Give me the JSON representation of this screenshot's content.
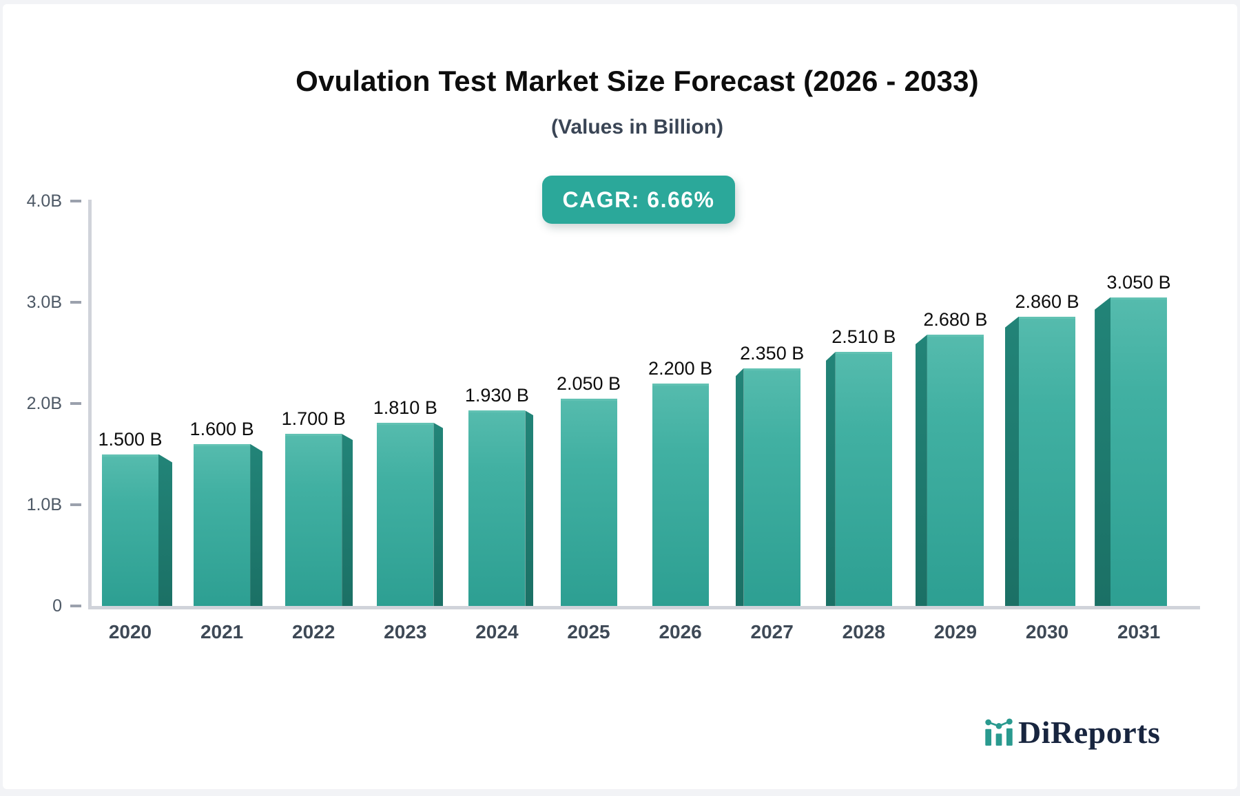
{
  "page": {
    "title": "Ovulation Test Market Size Forecast (2026 - 2033)",
    "subtitle": "(Values in Billion)",
    "cagr_badge": "CAGR: 6.66%"
  },
  "brand": {
    "logo_text": "DiReports",
    "logo_icon": "mini-bar-chart-icon"
  },
  "colors": {
    "bar_face_top": "#55bbad",
    "bar_face_bottom": "#2d9f92",
    "bar_face_highlight": "#62c2b3",
    "bar_side_dark": "#1f8074",
    "badge_teal": "#2ba89a",
    "axis_gray": "#d0d3da",
    "tick_gray": "#9ba1ad",
    "tick_label_color": "#4d5865",
    "year_label_color": "#3e4956",
    "value_label_color": "#0d0d0d",
    "logo_navy": "#18253f",
    "logo_teal": "#2a9a8f",
    "page_background": "#f2f3f6",
    "card_background": "#ffffff"
  },
  "chart_data": {
    "type": "bar",
    "title": "Ovulation Test Market Size Forecast (2026 - 2033)",
    "subtitle": "(Values in Billion)",
    "cagr": "6.66%",
    "unit": "Billion",
    "categories": [
      "2020",
      "2021",
      "2022",
      "2023",
      "2024",
      "2025",
      "2026",
      "2027",
      "2028",
      "2029",
      "2030",
      "2031"
    ],
    "values": [
      1.5,
      1.6,
      1.7,
      1.81,
      1.93,
      2.05,
      2.2,
      2.35,
      2.51,
      2.68,
      2.86,
      3.05
    ],
    "value_labels": [
      "1.500 B",
      "1.600 B",
      "1.700 B",
      "1.810 B",
      "1.930 B",
      "2.050 B",
      "2.200 B",
      "2.350 B",
      "2.510 B",
      "2.680 B",
      "2.860 B",
      "3.050 B"
    ],
    "xlabel": "",
    "ylabel": "",
    "ylim": [
      0,
      4
    ],
    "yticks": [
      {
        "v": 0,
        "label": "0"
      },
      {
        "v": 1,
        "label": "1.0B"
      },
      {
        "v": 2,
        "label": "2.0B"
      },
      {
        "v": 3,
        "label": "3.0B"
      },
      {
        "v": 4,
        "label": "4.0B"
      }
    ],
    "grid": false,
    "legend": false,
    "style": "3d-extruded-bars, center-vanishing-perspective"
  }
}
